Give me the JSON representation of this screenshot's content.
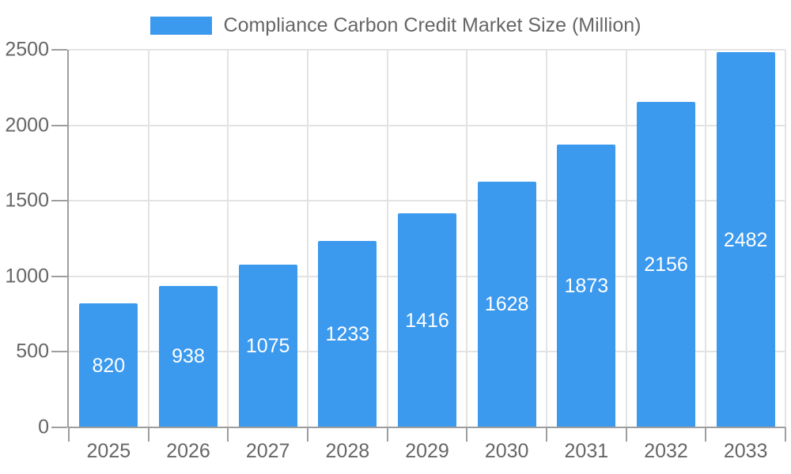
{
  "page": {
    "background": "#ffffff"
  },
  "chart_data": {
    "type": "bar",
    "title": "Compliance Carbon Credit Market Size (Million)",
    "categories": [
      "2025",
      "2026",
      "2027",
      "2028",
      "2029",
      "2030",
      "2031",
      "2032",
      "2033"
    ],
    "values": [
      820,
      938,
      1075,
      1233,
      1416,
      1628,
      1873,
      2156,
      2482
    ],
    "xlabel": "",
    "ylabel": "",
    "ylim": [
      0,
      2500
    ],
    "yticks": [
      0,
      500,
      1000,
      1500,
      2000,
      2500
    ],
    "grid": true,
    "legend_position": "top",
    "bar_color": "#3b99ee",
    "value_label_color": "#ffffff",
    "grid_color": "#e3e3e3",
    "axis_color": "#9e9e9e",
    "text_color": "#666666"
  }
}
